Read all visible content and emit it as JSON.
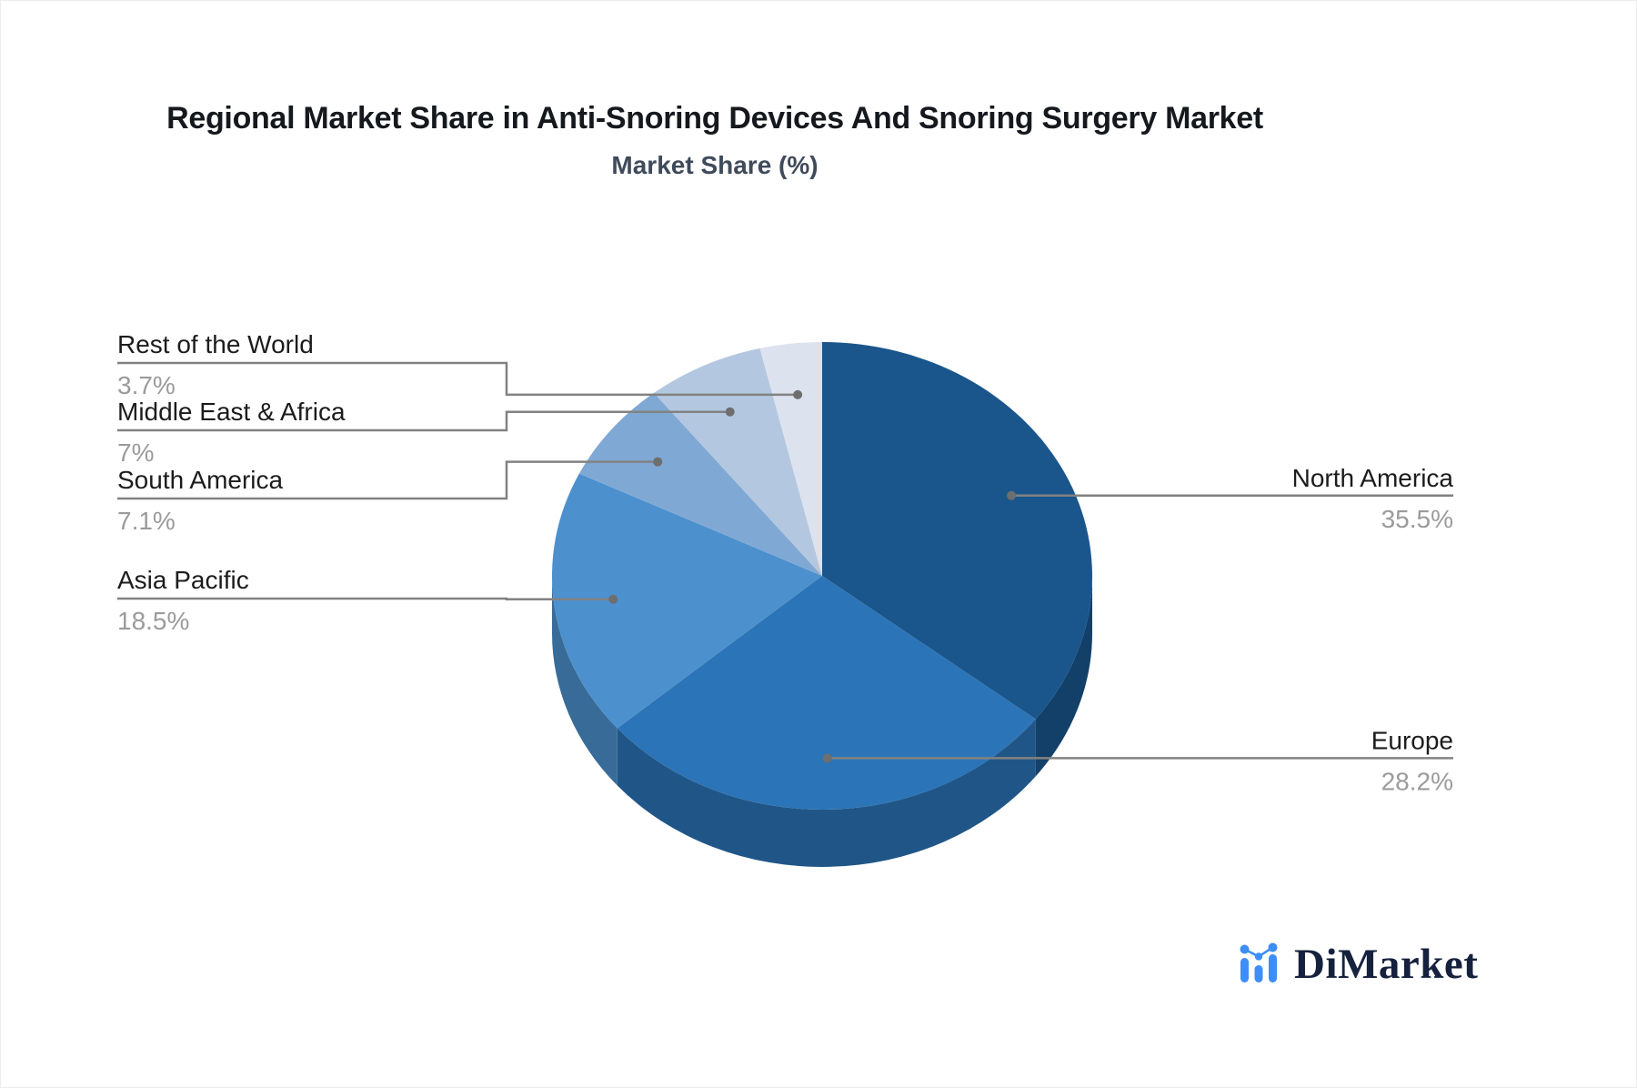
{
  "header": {
    "title": "Regional Market Share in Anti-Snoring Devices And Snoring Surgery Market",
    "subtitle": "Market Share (%)"
  },
  "chart_data": {
    "type": "pie",
    "style": "3d",
    "title": "Regional Market Share in Anti-Snoring Devices And Snoring Surgery Market",
    "subtitle": "Market Share (%)",
    "unit": "%",
    "start_angle_deg": 0,
    "direction": "clockwise",
    "legend_position": "callout-labels",
    "slices": [
      {
        "label": "North America",
        "value": 35.5,
        "display": "35.5%",
        "color": "#1A568C",
        "side": "right"
      },
      {
        "label": "Europe",
        "value": 28.2,
        "display": "28.2%",
        "color": "#2B74B7",
        "side": "right"
      },
      {
        "label": "Asia Pacific",
        "value": 18.5,
        "display": "18.5%",
        "color": "#4C90CE",
        "side": "left"
      },
      {
        "label": "South America",
        "value": 7.1,
        "display": "7.1%",
        "color": "#7FA9D4",
        "side": "left"
      },
      {
        "label": "Middle East & Africa",
        "value": 7,
        "display": "7%",
        "color": "#B3C8E0",
        "side": "left"
      },
      {
        "label": "Rest of the World",
        "value": 3.7,
        "display": "3.7%",
        "color": "#DCE3EF",
        "side": "left"
      }
    ]
  },
  "palette": {
    "label_text": "#1c1c1c",
    "value_text": "#9b9b9b",
    "connector": "#828282",
    "dot": "#6e6e6e",
    "title_text": "#15191e",
    "subtitle_text": "#3f4a5a",
    "background": "#ffffff"
  },
  "branding": {
    "logo_text": "DiMarket",
    "logo_text_color": "#16213e",
    "logo_icon": "bar-chart-icon",
    "logo_icon_color": "#3e8ef7"
  }
}
